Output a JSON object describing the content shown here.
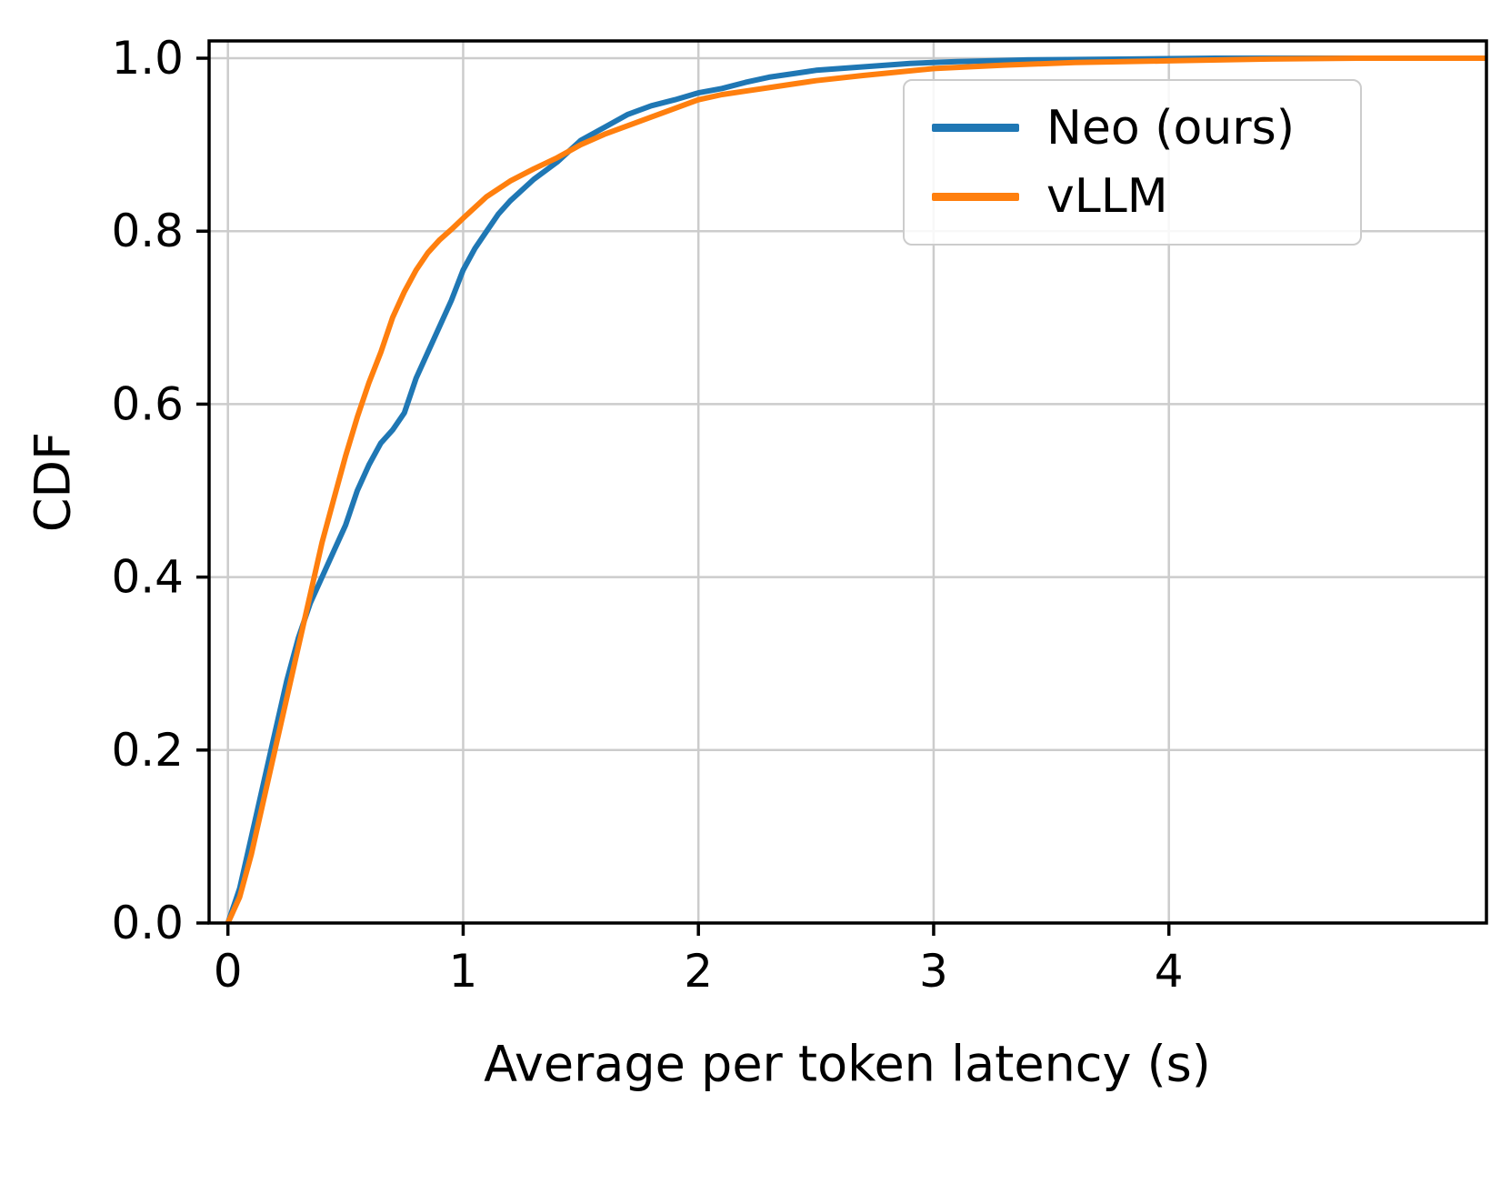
{
  "chart_data": {
    "type": "line",
    "title": "",
    "xlabel": "Average per token latency (s)",
    "ylabel": "CDF",
    "xlim": [
      -0.08,
      5.35
    ],
    "ylim": [
      0,
      1.02
    ],
    "xticks": [
      0,
      1,
      2,
      3,
      4
    ],
    "xtick_labels": [
      "0",
      "1",
      "2",
      "3",
      "4"
    ],
    "yticks": [
      0.0,
      0.2,
      0.4,
      0.6,
      0.8,
      1.0
    ],
    "ytick_labels": [
      "0.0",
      "0.2",
      "0.4",
      "0.6",
      "0.8",
      "1.0"
    ],
    "grid": true,
    "grid_color": "#cccccc",
    "frame_color": "#000000",
    "legend": {
      "position": "upper right"
    },
    "series": [
      {
        "name": "Neo (ours)",
        "color": "#1f77b4",
        "x": [
          0,
          0.05,
          0.1,
          0.15,
          0.2,
          0.25,
          0.3,
          0.35,
          0.4,
          0.45,
          0.5,
          0.55,
          0.6,
          0.65,
          0.7,
          0.75,
          0.8,
          0.85,
          0.9,
          0.95,
          1.0,
          1.05,
          1.1,
          1.15,
          1.2,
          1.3,
          1.4,
          1.5,
          1.6,
          1.7,
          1.8,
          1.9,
          2.0,
          2.1,
          2.2,
          2.3,
          2.4,
          2.5,
          2.7,
          2.9,
          3.1,
          3.4,
          3.8,
          4.2,
          5.35
        ],
        "y": [
          0,
          0.04,
          0.1,
          0.16,
          0.22,
          0.28,
          0.33,
          0.37,
          0.4,
          0.43,
          0.46,
          0.5,
          0.53,
          0.555,
          0.57,
          0.59,
          0.63,
          0.66,
          0.69,
          0.72,
          0.755,
          0.78,
          0.8,
          0.82,
          0.835,
          0.86,
          0.88,
          0.905,
          0.92,
          0.935,
          0.945,
          0.952,
          0.96,
          0.965,
          0.972,
          0.978,
          0.982,
          0.986,
          0.99,
          0.994,
          0.996,
          0.998,
          0.999,
          1.0,
          1.0
        ]
      },
      {
        "name": "vLLM",
        "color": "#ff7f0e",
        "x": [
          0,
          0.05,
          0.1,
          0.15,
          0.2,
          0.25,
          0.3,
          0.35,
          0.4,
          0.45,
          0.5,
          0.55,
          0.6,
          0.65,
          0.7,
          0.75,
          0.8,
          0.85,
          0.9,
          0.95,
          1.0,
          1.1,
          1.2,
          1.3,
          1.4,
          1.5,
          1.6,
          1.7,
          1.8,
          1.9,
          2.0,
          2.1,
          2.2,
          2.3,
          2.4,
          2.5,
          2.7,
          3.0,
          3.3,
          3.6,
          4.0,
          4.4,
          4.8,
          5.35
        ],
        "y": [
          0,
          0.03,
          0.08,
          0.14,
          0.2,
          0.26,
          0.32,
          0.38,
          0.44,
          0.49,
          0.54,
          0.585,
          0.625,
          0.66,
          0.7,
          0.73,
          0.755,
          0.775,
          0.79,
          0.802,
          0.815,
          0.84,
          0.858,
          0.872,
          0.885,
          0.9,
          0.912,
          0.922,
          0.932,
          0.942,
          0.952,
          0.958,
          0.962,
          0.966,
          0.97,
          0.974,
          0.98,
          0.988,
          0.992,
          0.995,
          0.997,
          0.999,
          1.0,
          1.0
        ]
      }
    ]
  }
}
